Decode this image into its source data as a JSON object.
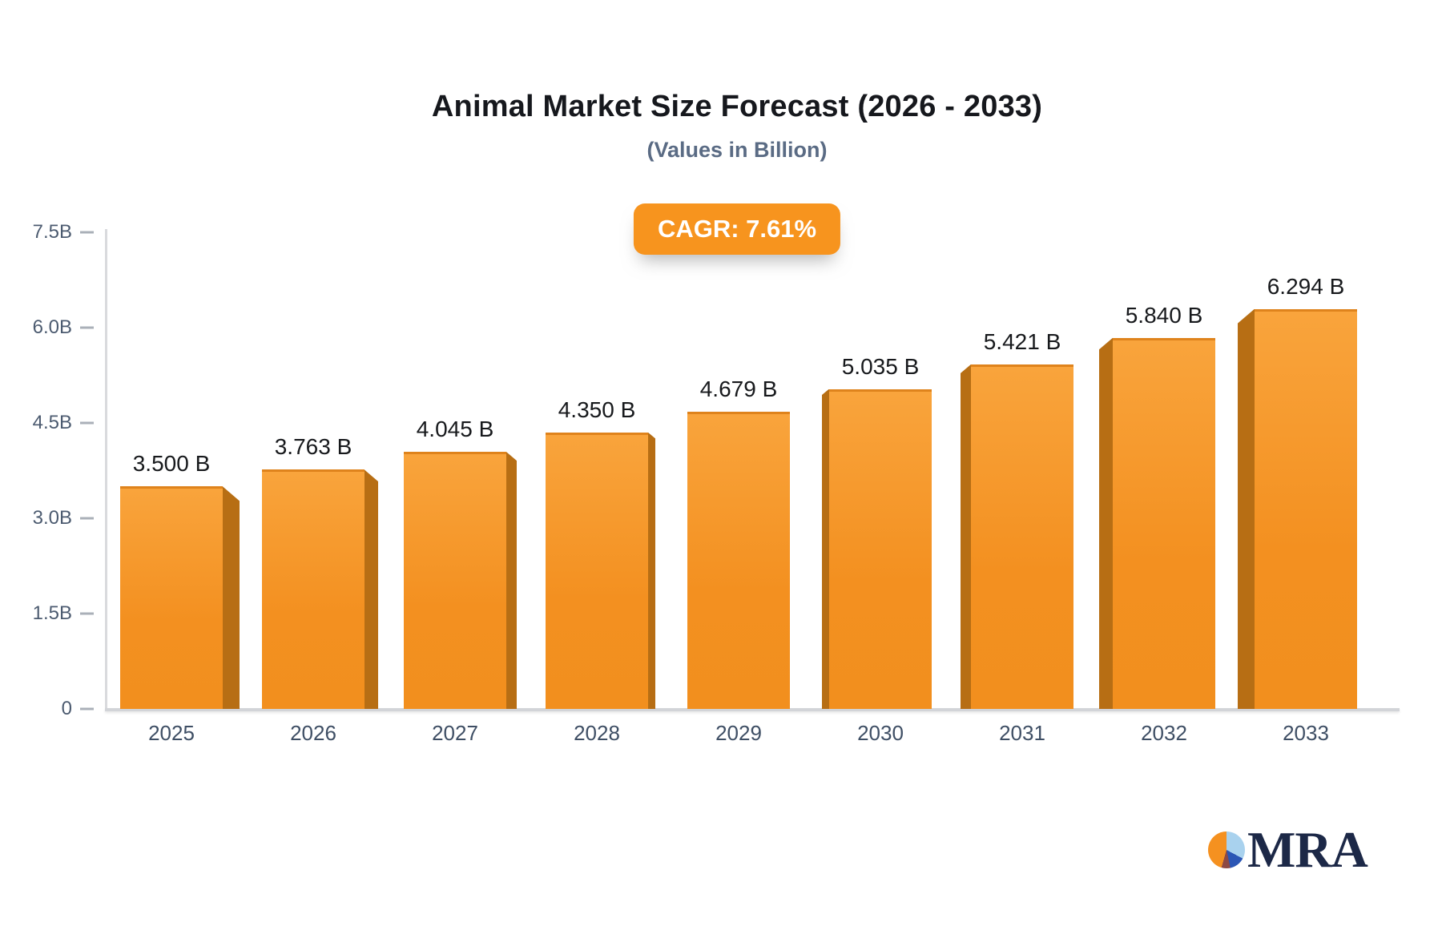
{
  "header": {
    "title": "Animal Market Size Forecast (2026 - 2033)",
    "subtitle": "(Values in Billion)",
    "cagr_badge": "CAGR: 7.61%"
  },
  "logo": {
    "text": "MRA"
  },
  "colors": {
    "bar_face_top": "#f9a43c",
    "bar_face_bottom": "#f28f1e",
    "bar_side": "#b76e14",
    "badge_orange": "#f7941e",
    "axis_gray": "#d2d4d8",
    "ytick_label": "#4c5b70",
    "year_label": "#3e4e64",
    "value_label": "#17191c",
    "title": "#16181d",
    "subtitle": "#5a6b84",
    "logo_navy": "#1c2847"
  },
  "chart_data": {
    "type": "bar",
    "title": "Animal Market Size Forecast (2026 - 2033)",
    "subtitle": "(Values in Billion)",
    "annotation": "CAGR: 7.61%",
    "categories": [
      "2025",
      "2026",
      "2027",
      "2028",
      "2029",
      "2030",
      "2031",
      "2032",
      "2033"
    ],
    "values": [
      3.5,
      3.763,
      4.045,
      4.35,
      4.679,
      5.035,
      5.421,
      5.84,
      6.294
    ],
    "value_labels": [
      "3.500 B",
      "3.763 B",
      "4.045 B",
      "4.350 B",
      "4.679 B",
      "5.035 B",
      "5.421 B",
      "5.840 B",
      "6.294 B"
    ],
    "xlabel": "",
    "ylabel": "",
    "ylim": [
      0,
      7.5
    ],
    "yticks": [
      0,
      1.5,
      3.0,
      4.5,
      6.0,
      7.5
    ],
    "ytick_labels": [
      "0",
      "1.5B",
      "3.0B",
      "4.5B",
      "6.0B",
      "7.5B"
    ],
    "grid": false,
    "legend": "none",
    "bar_style": "3d-orange"
  }
}
